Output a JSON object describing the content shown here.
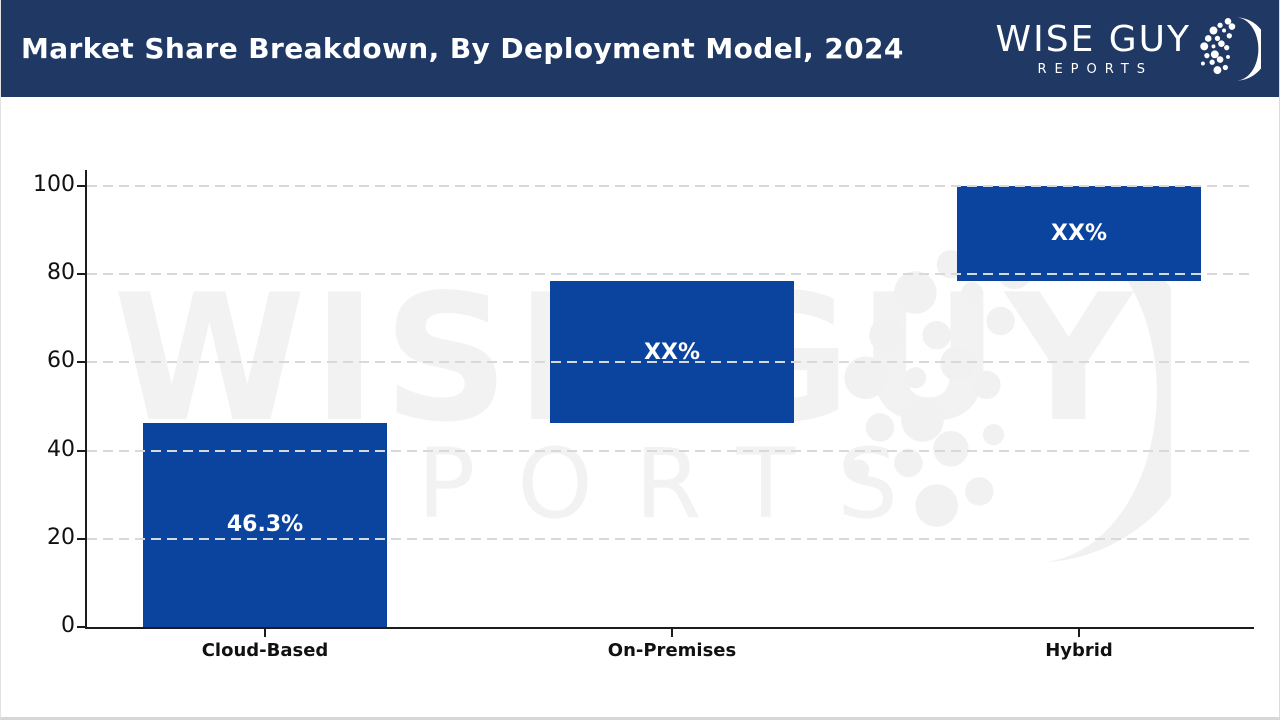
{
  "header": {
    "title": "Market Share Breakdown, By Deployment Model, 2024"
  },
  "logo": {
    "name": "WISE GUY",
    "subtitle": "REPORTS"
  },
  "watermark": {
    "line1": "WISE GUY",
    "line2": "REPORTS"
  },
  "colors": {
    "header_bg": "#203864",
    "bar": "#0A449E",
    "gridline": "#D9D9D9",
    "axis": "#1C1C1C",
    "watermark": "#F2F2F2"
  },
  "chart_data": {
    "type": "bar",
    "variant": "floating-waterfall",
    "title": "Market Share Breakdown, By Deployment Model, 2024",
    "categories": [
      "Cloud-Based",
      "On-Premises",
      "Hybrid"
    ],
    "bars": [
      {
        "category": "Cloud-Based",
        "start": 0,
        "end": 46.3,
        "label": "46.3%"
      },
      {
        "category": "On-Premises",
        "start": 46.3,
        "end": 78.4,
        "label": "XX%"
      },
      {
        "category": "Hybrid",
        "start": 78.4,
        "end": 100,
        "label": "XX%"
      }
    ],
    "xlabel": "",
    "ylabel": "",
    "ylim": [
      0,
      100
    ],
    "yticks": [
      0,
      20,
      40,
      60,
      80,
      100
    ],
    "grid": "horizontal dashed, drawn over bars",
    "legend": "none"
  }
}
